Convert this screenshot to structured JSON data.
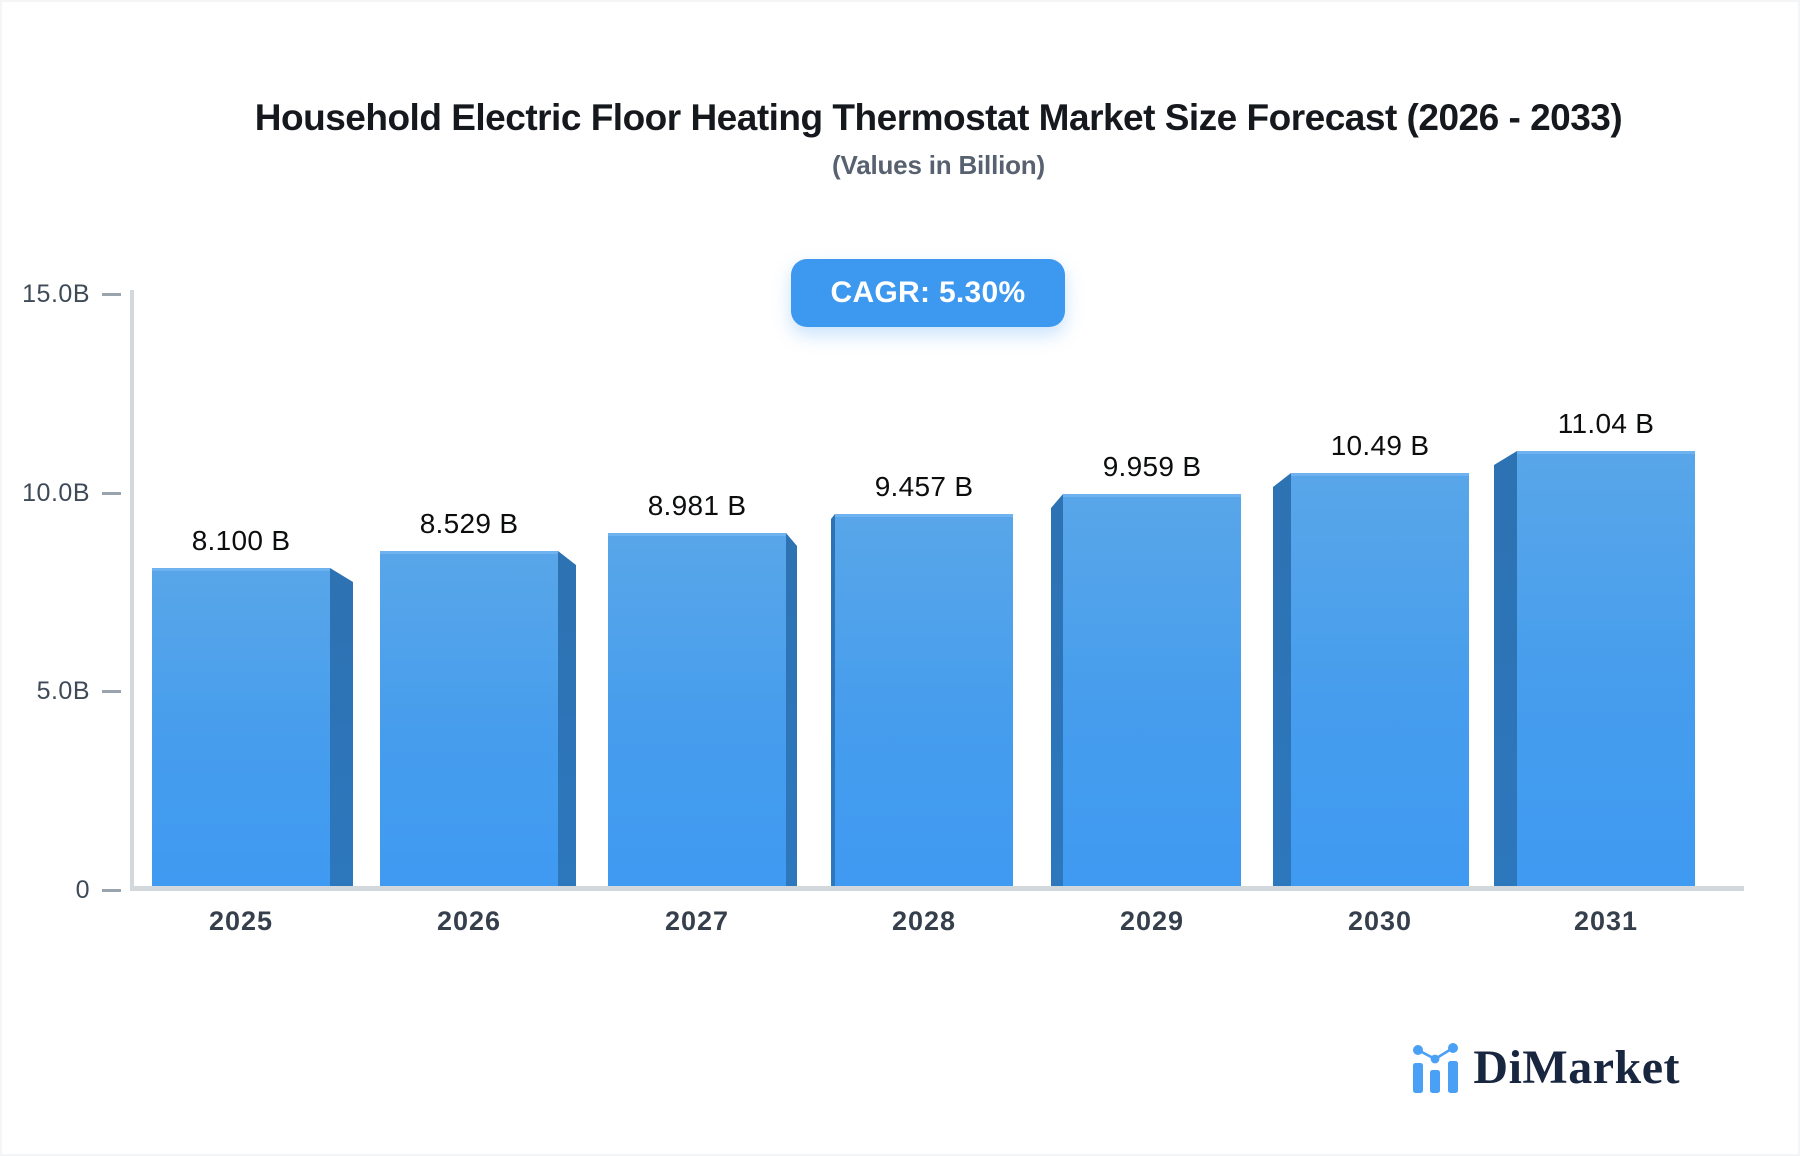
{
  "header": {
    "title": "Household Electric Floor Heating Thermostat Market Size Forecast (2026 - 2033)",
    "subtitle": "(Values in Billion)"
  },
  "badge": {
    "label": "CAGR: 5.30%"
  },
  "brand": {
    "name": "DiMarket"
  },
  "colors": {
    "accent_blue": "#3d98ef",
    "bar_top": "#58a6e9",
    "bar_bottom": "#3f9af1",
    "bar_side": "#2d75b7",
    "axis_line": "#d3d8dd",
    "tick_text": "#3e4a58",
    "value_text": "#0c0d0f",
    "year_text": "#36404d",
    "logo_navy": "#18263f",
    "logo_blue": "#4aa0f5"
  },
  "chart_data": {
    "type": "bar",
    "title": "Household Electric Floor Heating Thermostat Market Size Forecast (2026 - 2033)",
    "subtitle": "(Values in Billion)",
    "cagr_percent": 5.3,
    "categories": [
      "2025",
      "2026",
      "2027",
      "2028",
      "2029",
      "2030",
      "2031"
    ],
    "values": [
      8.1,
      8.529,
      8.981,
      9.457,
      9.959,
      10.49,
      11.04
    ],
    "value_labels": [
      "8.100 B",
      "8.529 B",
      "8.981 B",
      "9.457 B",
      "9.959 B",
      "10.49 B",
      "11.04 B"
    ],
    "unit": "Billion",
    "xlabel": "",
    "ylabel": "",
    "ylim": [
      0,
      15
    ],
    "yticks": [
      {
        "value": 0,
        "label": "0"
      },
      {
        "value": 5,
        "label": "5.0B"
      },
      {
        "value": 10,
        "label": "10.0B"
      },
      {
        "value": 15,
        "label": "15.0B"
      }
    ],
    "grid": false,
    "legend": false,
    "bar_style": "3d-extruded"
  }
}
